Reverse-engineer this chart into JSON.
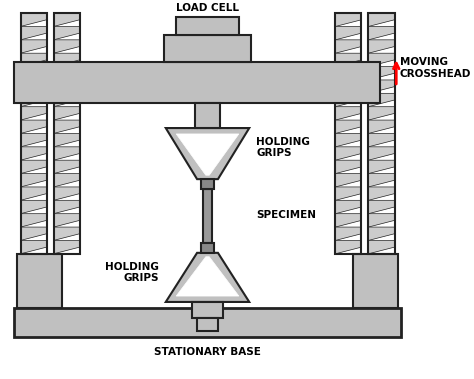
{
  "bg_color": "#ffffff",
  "gray": "#c0c0c0",
  "gray_dark": "#a0a0a0",
  "dark": "#222222",
  "labels": {
    "load_cell": "LOAD CELL",
    "moving_crosshead": "MOVING\nCROSSHEAD",
    "holding_grips_top": "HOLDING\nGRIPS",
    "specimen": "SPECIMEN",
    "holding_grips_bottom": "HOLDING\nGRIPS",
    "stationary_base": "STATIONARY BASE"
  },
  "label_fontsize": 7.5,
  "label_fontweight": "bold"
}
